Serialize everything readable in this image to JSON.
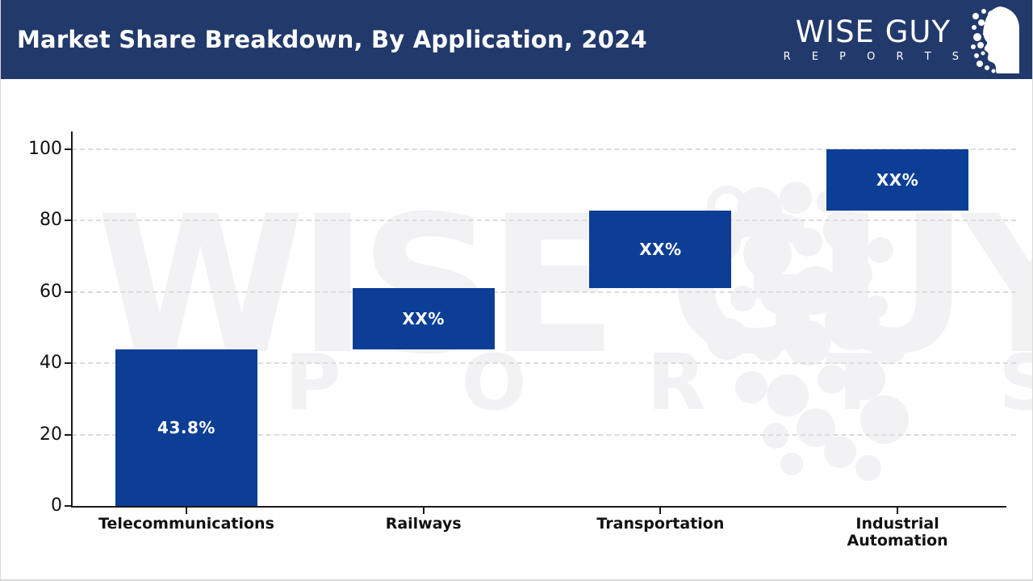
{
  "header": {
    "title": "Market Share Breakdown, By Application, 2024",
    "logo": {
      "line1": "WISE GUY",
      "line2": "R E P O R T S"
    }
  },
  "watermark": {
    "line1": "WISE GUY",
    "line2": "P O R T S"
  },
  "chart_data": {
    "type": "bar",
    "subtype": "waterfall-stacked",
    "title": "Market Share Breakdown, By Application, 2024",
    "categories": [
      "Telecommunications",
      "Railways",
      "Transportation",
      "Industrial Automation"
    ],
    "categories_display": [
      "Telecommunications",
      "Railways",
      "Transportation",
      "Industrial\nAutomation"
    ],
    "segments": [
      {
        "category": "Telecommunications",
        "start": 0,
        "end": 43.8,
        "label": "43.8%"
      },
      {
        "category": "Railways",
        "start": 43.8,
        "end": 61.0,
        "label": "XX%"
      },
      {
        "category": "Transportation",
        "start": 61.0,
        "end": 82.8,
        "label": "XX%"
      },
      {
        "category": "Industrial Automation",
        "start": 82.8,
        "end": 100,
        "label": "XX%"
      }
    ],
    "ylim": [
      0,
      100
    ],
    "yticks": [
      0,
      20,
      40,
      60,
      80,
      100
    ],
    "xlabel": "",
    "ylabel": "",
    "grid": "horizontal-dashed",
    "legend": "none",
    "bar_color": "#0c3e96"
  },
  "colors": {
    "header_bg": "#22396b",
    "bar": "#0c3e96",
    "on_bar_text": "#ffffff",
    "watermark": "#f2f2f4",
    "gridline": "#dcdcdc",
    "axis": "#1a1a1a"
  }
}
